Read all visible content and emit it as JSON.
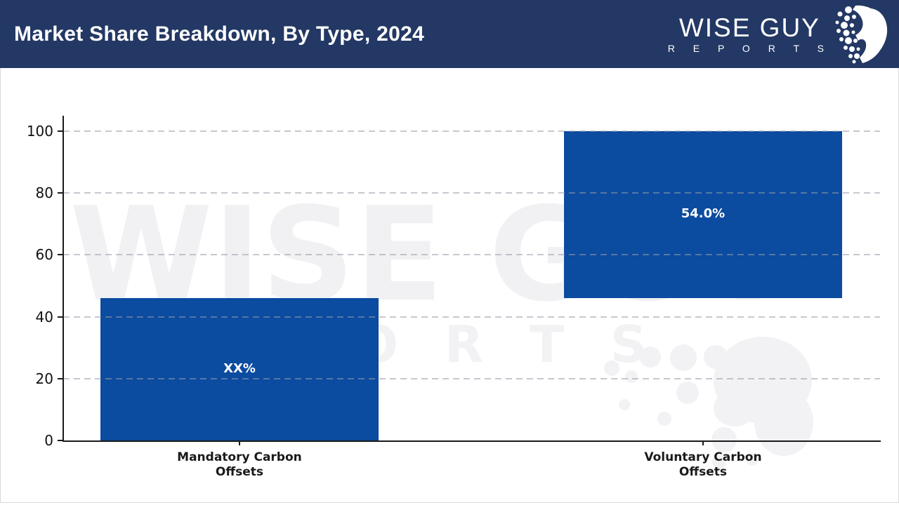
{
  "header": {
    "title": "Market Share Breakdown, By Type, 2024",
    "logo": {
      "line1": "WISE GUY",
      "line2": "R E P O R T S"
    }
  },
  "watermark": {
    "line1": "WISE GUY",
    "line2": "REPORTS"
  },
  "chart_data": {
    "type": "bar",
    "subtype": "stacked-breakdown (each bar starts where previous ends)",
    "title": "Market Share Breakdown, By Type, 2024",
    "categories": [
      "Mandatory Carbon Offsets",
      "Voluntary Carbon Offsets"
    ],
    "bars": [
      {
        "category_lines": [
          "Mandatory Carbon",
          "Offsets"
        ],
        "base": 0,
        "top": 46,
        "value_label": "XX%"
      },
      {
        "category_lines": [
          "Voluntary Carbon",
          "Offsets"
        ],
        "base": 46,
        "top": 100,
        "value_label": "54.0%"
      }
    ],
    "xlabel": "",
    "ylabel": "",
    "ylim": [
      0,
      100
    ],
    "yticks": [
      0,
      20,
      40,
      60,
      80,
      100
    ],
    "grid": "horizontal dashed",
    "legend": "none",
    "bar_color": "#0b4ba0",
    "value_label_color": "#ffffff"
  },
  "colors": {
    "header_bg": "#233864",
    "bar": "#0b4ba0",
    "axis": "#1a1a1a",
    "grid": "#d9d9d9",
    "watermark": "#f1f1f4"
  }
}
